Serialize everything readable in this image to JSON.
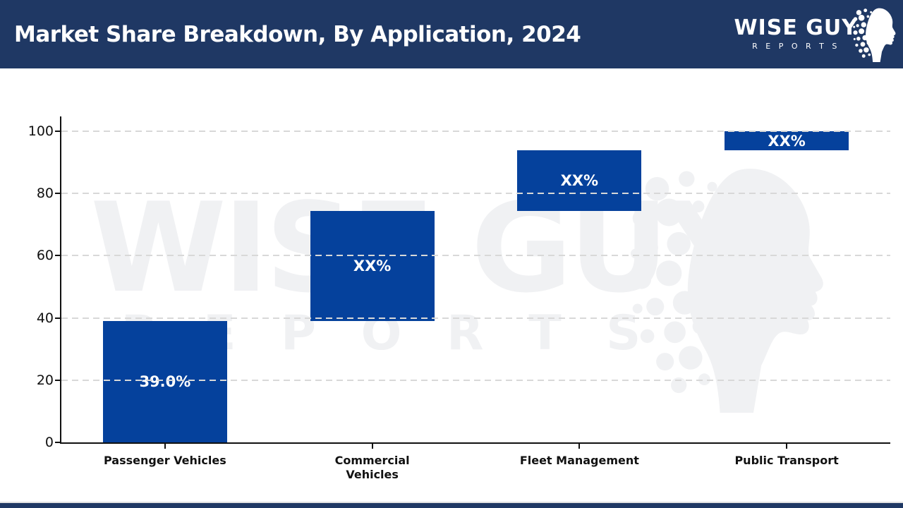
{
  "header": {
    "title": "Market Share Breakdown, By Application, 2024",
    "bg_color": "#1f3864",
    "text_color": "#ffffff",
    "logo": {
      "line1": "WISE GUY",
      "line2": "R E P O R T S"
    }
  },
  "watermark": {
    "line1": "WISE GUY",
    "line2": "R E P O R T S",
    "color": "#f0f1f3"
  },
  "chart_data": {
    "type": "bar",
    "subtype": "floating-waterfall",
    "title": "Market Share Breakdown, By Application, 2024",
    "categories": [
      "Passenger Vehicles",
      "Commercial\nVehicles",
      "Fleet Management",
      "Public Transport"
    ],
    "segments": [
      {
        "category": "Passenger Vehicles",
        "start": 0,
        "end": 39,
        "value": 39,
        "label": "39.0%"
      },
      {
        "category": "Commercial\nVehicles",
        "start": 39,
        "end": 74.3,
        "value": 35.3,
        "label": "XX%"
      },
      {
        "category": "Fleet Management",
        "start": 74.3,
        "end": 93.8,
        "value": 19.5,
        "label": "XX%"
      },
      {
        "category": "Public Transport",
        "start": 93.8,
        "end": 100,
        "value": 6.2,
        "label": "XX%"
      }
    ],
    "xlabel": "",
    "ylabel": "",
    "ylim": [
      0,
      100
    ],
    "yticks": [
      0,
      20,
      40,
      60,
      80,
      100
    ],
    "grid": "dashed-horizontal",
    "legend": "none",
    "bar_color": "#05419c",
    "grid_color": "#d8d8d8",
    "label_color": "#ffffff"
  },
  "footer": {
    "bg_color": "#1f3864"
  }
}
